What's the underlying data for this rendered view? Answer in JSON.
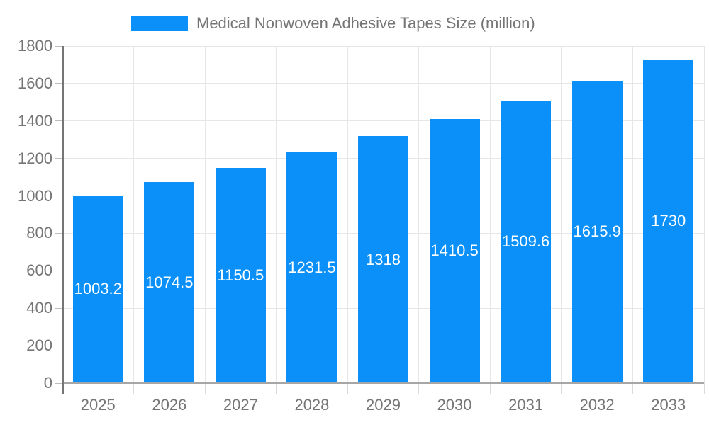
{
  "legend": {
    "series_label": "Medical Nonwoven Adhesive Tapes Size (million)"
  },
  "chart_data": {
    "type": "bar",
    "title": "Medical Nonwoven Adhesive Tapes Size (million)",
    "categories": [
      "2025",
      "2026",
      "2027",
      "2028",
      "2029",
      "2030",
      "2031",
      "2032",
      "2033"
    ],
    "values": [
      1003.2,
      1074.5,
      1150.5,
      1231.5,
      1318,
      1410.5,
      1509.6,
      1615.9,
      1730
    ],
    "value_labels": [
      "1003.2",
      "1074.5",
      "1150.5",
      "1231.5",
      "1318",
      "1410.5",
      "1509.6",
      "1615.9",
      "1730"
    ],
    "xlabel": "",
    "ylabel": "",
    "ylim": [
      0,
      1800
    ],
    "ytick_step": 200,
    "ytick_labels": [
      "0",
      "200",
      "400",
      "600",
      "800",
      "1000",
      "1200",
      "1400",
      "1600",
      "1800"
    ],
    "grid": "on",
    "legend_position": "top-center",
    "colors": {
      "bar": "#0a90f8",
      "bar_value_text": "#ffffff",
      "axis_text": "#757575",
      "gridline": "#e6e6e6",
      "zero_line": "#a6a6a6",
      "y_axis_line": "#757575"
    }
  }
}
